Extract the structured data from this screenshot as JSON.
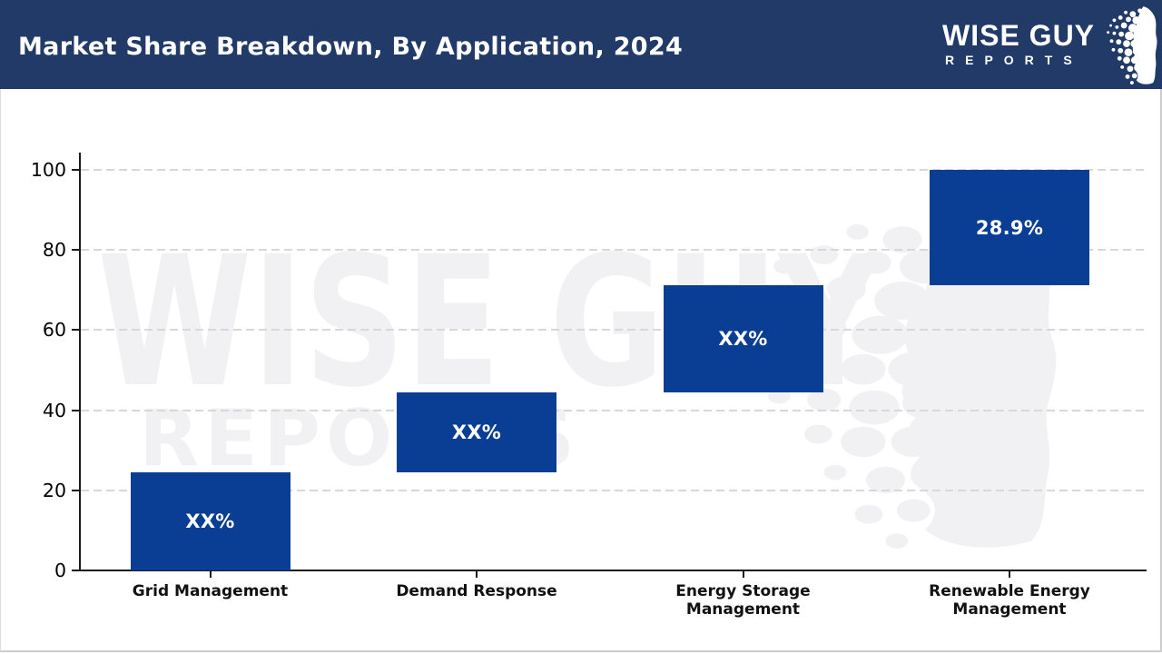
{
  "header": {
    "title": "Market Share Breakdown, By Application, 2024",
    "logo": {
      "primary": "WISE GUY",
      "secondary": "REPORTS"
    }
  },
  "watermark": {
    "primary": "WISE GUY",
    "secondary": "REPORTS"
  },
  "chart_data": {
    "type": "bar",
    "subtype": "floating-waterfall",
    "title": "Market Share Breakdown, By Application, 2024",
    "xlabel": "",
    "ylabel": "",
    "categories": [
      "Grid Management",
      "Demand Response",
      "Energy Storage Management",
      "Renewable Energy Management"
    ],
    "series": [
      {
        "name": "Grid Management",
        "start": 0,
        "end": 24.5,
        "label": "XX%"
      },
      {
        "name": "Demand Response",
        "start": 24.5,
        "end": 44.4,
        "label": "XX%"
      },
      {
        "name": "Energy Storage Management",
        "start": 44.4,
        "end": 71.1,
        "label": "XX%"
      },
      {
        "name": "Renewable Energy Management",
        "start": 71.1,
        "end": 100,
        "label": "28.9%"
      }
    ],
    "yticks": [
      0,
      20,
      40,
      60,
      80,
      100
    ],
    "ylim": [
      0,
      104
    ],
    "grid": "horizontal-dashed",
    "legend": "none",
    "bar_color": "#0a3d94",
    "bar_label_color": "#ffffff",
    "grid_color": "#d8d8d8",
    "axis_color": "#1a1a1a",
    "header_bg_color": "#223a68",
    "watermark_color": "#f1f1f4"
  }
}
